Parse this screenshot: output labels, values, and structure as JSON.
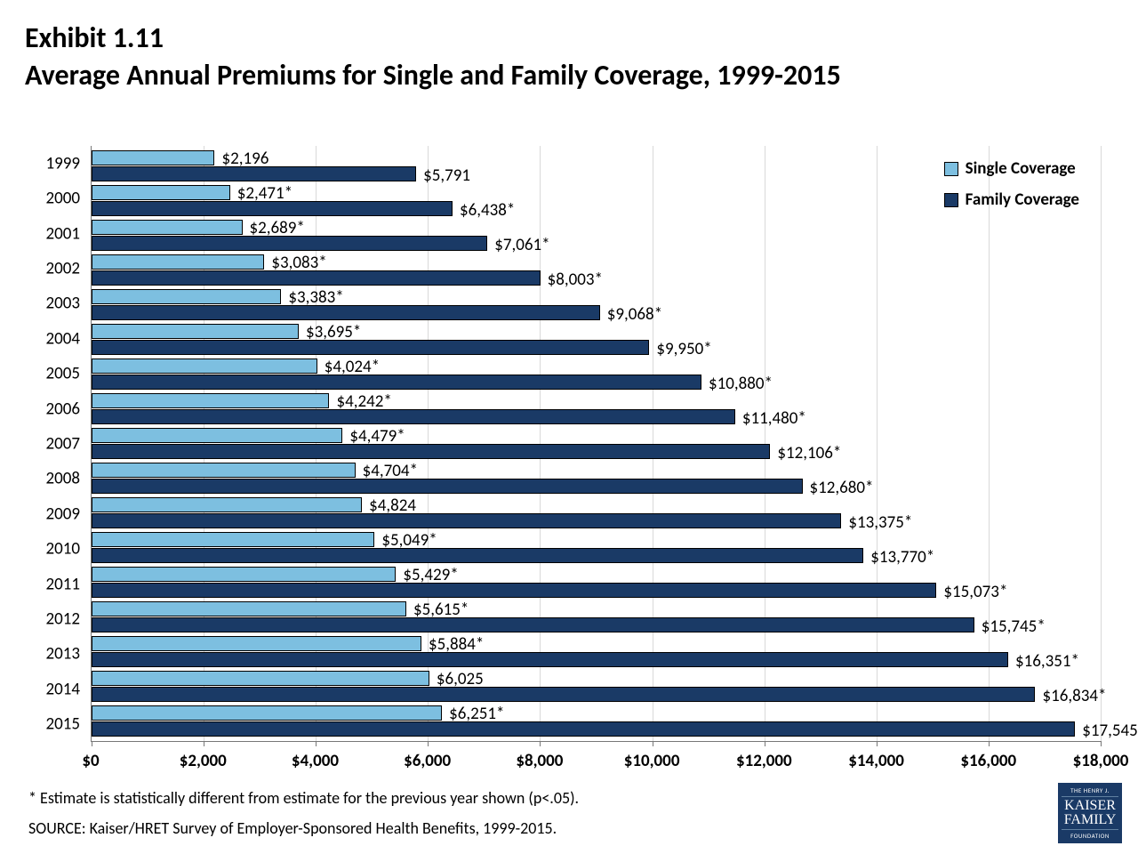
{
  "exhibit_label": "Exhibit 1.11",
  "title": "Average Annual Premiums for Single and Family Coverage, 1999-2015",
  "chart": {
    "type": "bar-horizontal-grouped",
    "xmin": 0,
    "xmax": 18000,
    "xtick_step": 2000,
    "xtick_labels": [
      "$0",
      "$2,000",
      "$4,000",
      "$6,000",
      "$8,000",
      "$10,000",
      "$12,000",
      "$14,000",
      "$16,000",
      "$18,000"
    ],
    "category_fontsize": 19,
    "xlabel_fontsize": 19,
    "xlabel_fontweight": 700,
    "value_label_fontsize": 19,
    "grid_color": "#d9d9d9",
    "axis_color": "#777777",
    "bar_border_color": "#000000",
    "series": {
      "single": {
        "label": "Single Coverage",
        "color": "#7dbfe0"
      },
      "family": {
        "label": "Family Coverage",
        "color": "#1a3a66"
      }
    },
    "years": [
      {
        "year": "1999",
        "single": 2196,
        "single_label": "$2,196",
        "family": 5791,
        "family_label": "$5,791"
      },
      {
        "year": "2000",
        "single": 2471,
        "single_label": "$2,471*",
        "family": 6438,
        "family_label": "$6,438*"
      },
      {
        "year": "2001",
        "single": 2689,
        "single_label": "$2,689*",
        "family": 7061,
        "family_label": "$7,061*"
      },
      {
        "year": "2002",
        "single": 3083,
        "single_label": "$3,083*",
        "family": 8003,
        "family_label": "$8,003*"
      },
      {
        "year": "2003",
        "single": 3383,
        "single_label": "$3,383*",
        "family": 9068,
        "family_label": "$9,068*"
      },
      {
        "year": "2004",
        "single": 3695,
        "single_label": "$3,695*",
        "family": 9950,
        "family_label": "$9,950*"
      },
      {
        "year": "2005",
        "single": 4024,
        "single_label": "$4,024*",
        "family": 10880,
        "family_label": "$10,880*"
      },
      {
        "year": "2006",
        "single": 4242,
        "single_label": "$4,242*",
        "family": 11480,
        "family_label": "$11,480*"
      },
      {
        "year": "2007",
        "single": 4479,
        "single_label": "$4,479*",
        "family": 12106,
        "family_label": "$12,106*"
      },
      {
        "year": "2008",
        "single": 4704,
        "single_label": "$4,704*",
        "family": 12680,
        "family_label": "$12,680*"
      },
      {
        "year": "2009",
        "single": 4824,
        "single_label": "$4,824",
        "family": 13375,
        "family_label": "$13,375*"
      },
      {
        "year": "2010",
        "single": 5049,
        "single_label": "$5,049*",
        "family": 13770,
        "family_label": "$13,770*"
      },
      {
        "year": "2011",
        "single": 5429,
        "single_label": "$5,429*",
        "family": 15073,
        "family_label": "$15,073*"
      },
      {
        "year": "2012",
        "single": 5615,
        "single_label": "$5,615*",
        "family": 15745,
        "family_label": "$15,745*"
      },
      {
        "year": "2013",
        "single": 5884,
        "single_label": "$5,884*",
        "family": 16351,
        "family_label": "$16,351*"
      },
      {
        "year": "2014",
        "single": 6025,
        "single_label": "$6,025",
        "family": 16834,
        "family_label": "$16,834*"
      },
      {
        "year": "2015",
        "single": 6251,
        "single_label": "$6,251*",
        "family": 17545,
        "family_label": "$17,545*"
      }
    ]
  },
  "legend": {
    "single": "Single Coverage",
    "family": "Family Coverage"
  },
  "footnote": "* Estimate is statistically different from estimate for the previous year shown (p<.05).",
  "source": "SOURCE:  Kaiser/HRET Survey of Employer-Sponsored Health Benefits, 1999-2015.",
  "logo": {
    "line1": "THE HENRY J.",
    "line2a": "KAISER",
    "line2b": "FAMILY",
    "line3": "FOUNDATION",
    "bg": "#1a3a66"
  }
}
